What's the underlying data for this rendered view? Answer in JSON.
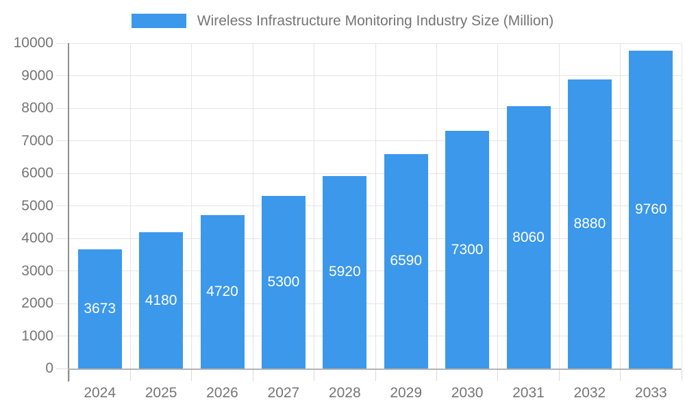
{
  "chart_data": {
    "type": "bar",
    "title": "Wireless Infrastructure Monitoring Industry Size (Million)",
    "categories": [
      "2024",
      "2025",
      "2026",
      "2027",
      "2028",
      "2029",
      "2030",
      "2031",
      "2032",
      "2033"
    ],
    "values": [
      3673,
      4180,
      4720,
      5300,
      5920,
      6590,
      7300,
      8060,
      8880,
      9760
    ],
    "value_labels": [
      "3673",
      "4180",
      "4720",
      "5300",
      "5920",
      "6590",
      "7300",
      "8060",
      "8880",
      "9760"
    ],
    "xlabel": "",
    "ylabel": "",
    "ylim": [
      0,
      10000
    ],
    "yticks": [
      0,
      1000,
      2000,
      3000,
      4000,
      5000,
      6000,
      7000,
      8000,
      9000,
      10000
    ],
    "ytick_labels": [
      "0",
      "1000",
      "2000",
      "3000",
      "4000",
      "5000",
      "6000",
      "7000",
      "8000",
      "9000",
      "10000"
    ],
    "grid": "both",
    "legend_position": "top-center",
    "colors": {
      "bar": "#3B98EB",
      "value_label_text": "#FFFFFF",
      "axis_label_text": "#757575",
      "legend_text": "#757575",
      "y_axis_line": "#8F8F8F",
      "x_axis_line": "#B3B3B3",
      "gridline": "#E4E4E4",
      "tick": "#D9D9D9",
      "background": "#FFFFFF"
    }
  }
}
